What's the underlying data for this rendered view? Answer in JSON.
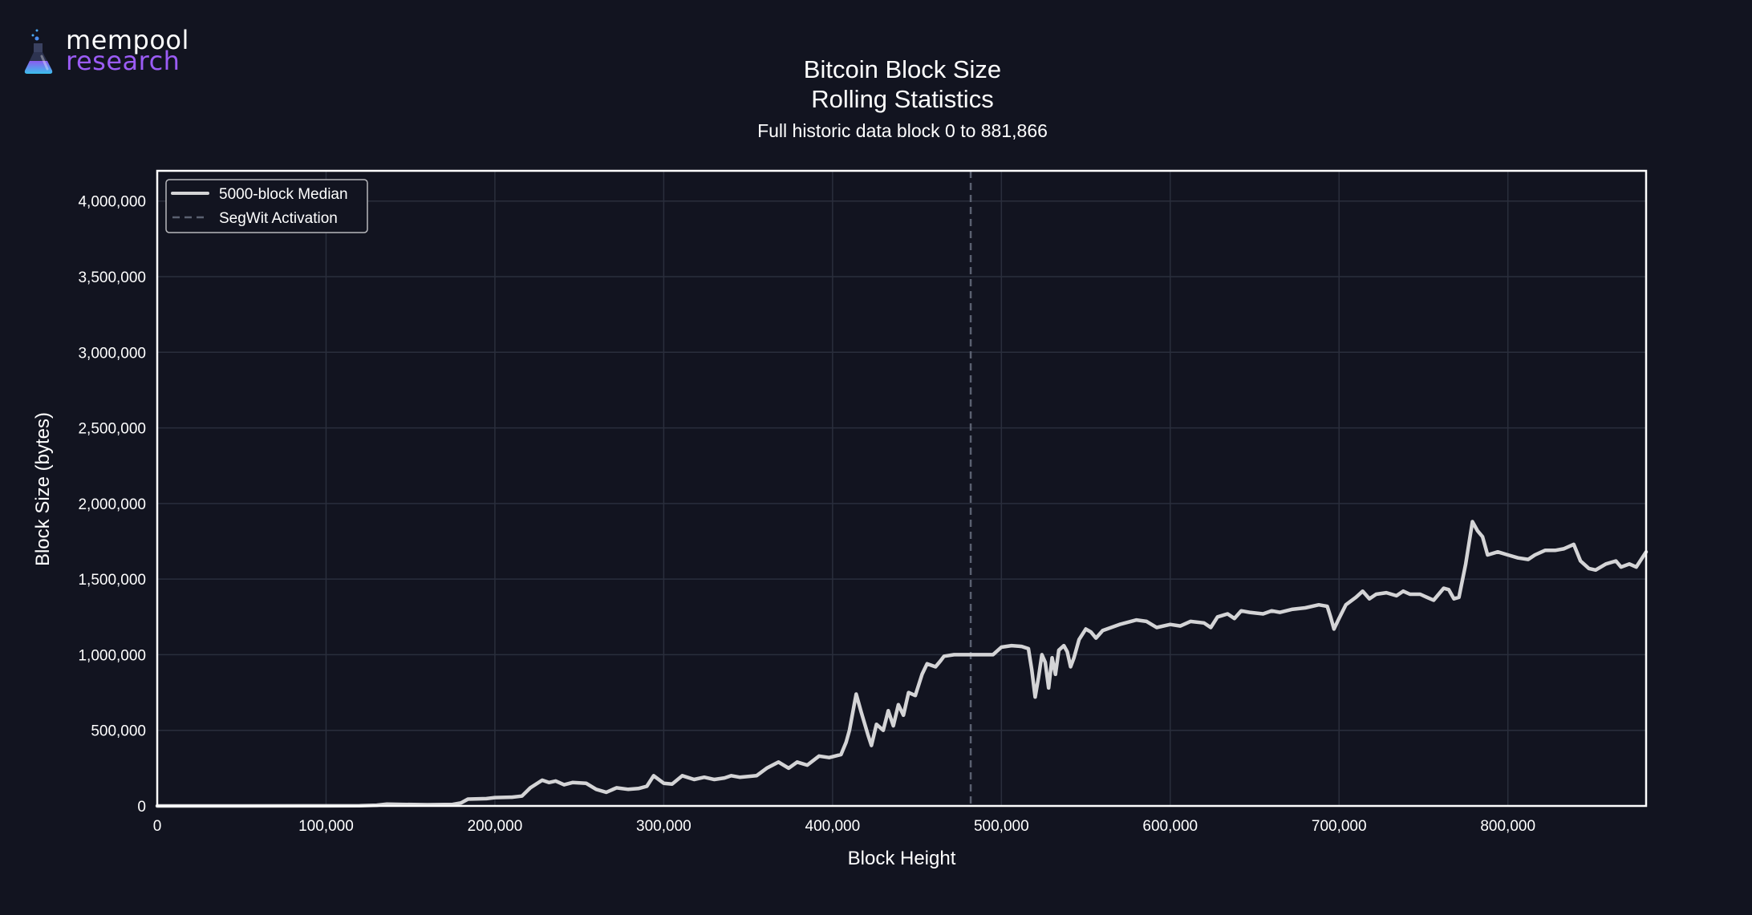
{
  "logo": {
    "line1": "mempool",
    "line2": "research",
    "icon": "flask-icon"
  },
  "chart_data": {
    "type": "line",
    "title": "Bitcoin Block Size",
    "title_line2": "Rolling Statistics",
    "subtitle": "Full historic data block 0 to 881,866",
    "xlabel": "Block Height",
    "ylabel": "Block Size (bytes)",
    "xlim": [
      0,
      881866
    ],
    "ylim": [
      0,
      4200000
    ],
    "grid": true,
    "legend_position": "upper left",
    "x_ticks": [
      0,
      100000,
      200000,
      300000,
      400000,
      500000,
      600000,
      700000,
      800000
    ],
    "x_tick_labels": [
      "0",
      "100,000",
      "200,000",
      "300,000",
      "400,000",
      "500,000",
      "600,000",
      "700,000",
      "800,000"
    ],
    "y_ticks": [
      0,
      500000,
      1000000,
      1500000,
      2000000,
      2500000,
      3000000,
      3500000,
      4000000
    ],
    "y_tick_labels": [
      "0",
      "500,000",
      "1,000,000",
      "1,500,000",
      "2,000,000",
      "2,500,000",
      "3,000,000",
      "3,500,000",
      "4,000,000"
    ],
    "legend": [
      {
        "label": "5000-block Median",
        "style": "solid",
        "color": "#d4d4d6"
      },
      {
        "label": "SegWit Activation",
        "style": "dashed",
        "color": "#5a6070"
      }
    ],
    "annotations": [
      {
        "type": "vline",
        "x": 481824,
        "label": "SegWit Activation"
      }
    ],
    "series": [
      {
        "name": "5000-block Median",
        "color": "#d4d4d6",
        "points": [
          [
            0,
            215
          ],
          [
            50000,
            215
          ],
          [
            100000,
            300
          ],
          [
            120000,
            1500
          ],
          [
            130000,
            5000
          ],
          [
            136000,
            12000
          ],
          [
            145000,
            10000
          ],
          [
            160000,
            8000
          ],
          [
            175000,
            10000
          ],
          [
            180000,
            20000
          ],
          [
            184000,
            45000
          ],
          [
            195000,
            48000
          ],
          [
            200000,
            55000
          ],
          [
            210000,
            58000
          ],
          [
            216000,
            65000
          ],
          [
            221000,
            120000
          ],
          [
            228000,
            170000
          ],
          [
            232000,
            155000
          ],
          [
            236000,
            165000
          ],
          [
            241000,
            140000
          ],
          [
            246000,
            155000
          ],
          [
            254000,
            150000
          ],
          [
            260000,
            110000
          ],
          [
            266000,
            90000
          ],
          [
            272000,
            120000
          ],
          [
            279000,
            110000
          ],
          [
            285000,
            115000
          ],
          [
            290000,
            130000
          ],
          [
            294000,
            200000
          ],
          [
            300000,
            150000
          ],
          [
            305000,
            145000
          ],
          [
            311000,
            200000
          ],
          [
            318000,
            175000
          ],
          [
            324000,
            190000
          ],
          [
            330000,
            175000
          ],
          [
            336000,
            185000
          ],
          [
            340000,
            200000
          ],
          [
            345000,
            190000
          ],
          [
            355000,
            200000
          ],
          [
            361000,
            250000
          ],
          [
            368000,
            290000
          ],
          [
            374000,
            250000
          ],
          [
            379000,
            290000
          ],
          [
            385000,
            270000
          ],
          [
            392000,
            330000
          ],
          [
            398000,
            320000
          ],
          [
            405000,
            340000
          ],
          [
            408000,
            420000
          ],
          [
            410000,
            500000
          ],
          [
            414000,
            740000
          ],
          [
            417000,
            620000
          ],
          [
            421000,
            470000
          ],
          [
            423000,
            400000
          ],
          [
            426000,
            540000
          ],
          [
            430000,
            500000
          ],
          [
            433000,
            630000
          ],
          [
            436000,
            530000
          ],
          [
            439000,
            670000
          ],
          [
            442000,
            600000
          ],
          [
            445000,
            750000
          ],
          [
            449000,
            730000
          ],
          [
            453000,
            870000
          ],
          [
            456000,
            940000
          ],
          [
            461000,
            920000
          ],
          [
            464000,
            960000
          ],
          [
            466000,
            990000
          ],
          [
            472000,
            1000000
          ],
          [
            481824,
            1000000
          ],
          [
            490000,
            1000000
          ],
          [
            495000,
            1000000
          ],
          [
            500000,
            1050000
          ],
          [
            506000,
            1060000
          ],
          [
            512000,
            1055000
          ],
          [
            516000,
            1040000
          ],
          [
            518000,
            900000
          ],
          [
            520000,
            720000
          ],
          [
            522000,
            850000
          ],
          [
            524000,
            1000000
          ],
          [
            526000,
            950000
          ],
          [
            528000,
            780000
          ],
          [
            530000,
            980000
          ],
          [
            532000,
            870000
          ],
          [
            534000,
            1030000
          ],
          [
            537000,
            1060000
          ],
          [
            539000,
            1020000
          ],
          [
            541000,
            920000
          ],
          [
            543000,
            980000
          ],
          [
            546000,
            1100000
          ],
          [
            550000,
            1170000
          ],
          [
            553000,
            1150000
          ],
          [
            556000,
            1110000
          ],
          [
            560000,
            1160000
          ],
          [
            570000,
            1200000
          ],
          [
            580000,
            1230000
          ],
          [
            586000,
            1220000
          ],
          [
            592000,
            1180000
          ],
          [
            600000,
            1200000
          ],
          [
            606000,
            1190000
          ],
          [
            612000,
            1220000
          ],
          [
            620000,
            1210000
          ],
          [
            624000,
            1180000
          ],
          [
            628000,
            1250000
          ],
          [
            634000,
            1270000
          ],
          [
            638000,
            1240000
          ],
          [
            642000,
            1290000
          ],
          [
            647000,
            1280000
          ],
          [
            655000,
            1270000
          ],
          [
            660000,
            1290000
          ],
          [
            665000,
            1280000
          ],
          [
            672000,
            1300000
          ],
          [
            680000,
            1310000
          ],
          [
            688000,
            1330000
          ],
          [
            693000,
            1320000
          ],
          [
            695000,
            1250000
          ],
          [
            697000,
            1170000
          ],
          [
            700000,
            1240000
          ],
          [
            704000,
            1330000
          ],
          [
            710000,
            1380000
          ],
          [
            714000,
            1420000
          ],
          [
            718000,
            1370000
          ],
          [
            722000,
            1400000
          ],
          [
            728000,
            1410000
          ],
          [
            734000,
            1390000
          ],
          [
            738000,
            1420000
          ],
          [
            742000,
            1400000
          ],
          [
            748000,
            1400000
          ],
          [
            752000,
            1380000
          ],
          [
            756000,
            1360000
          ],
          [
            762000,
            1440000
          ],
          [
            765000,
            1430000
          ],
          [
            768000,
            1370000
          ],
          [
            771000,
            1380000
          ],
          [
            775000,
            1600000
          ],
          [
            779000,
            1880000
          ],
          [
            782000,
            1820000
          ],
          [
            785000,
            1780000
          ],
          [
            788000,
            1660000
          ],
          [
            794000,
            1680000
          ],
          [
            800000,
            1660000
          ],
          [
            806000,
            1640000
          ],
          [
            812000,
            1630000
          ],
          [
            816000,
            1660000
          ],
          [
            822000,
            1690000
          ],
          [
            828000,
            1690000
          ],
          [
            833000,
            1700000
          ],
          [
            839000,
            1730000
          ],
          [
            843000,
            1620000
          ],
          [
            848000,
            1570000
          ],
          [
            852000,
            1560000
          ],
          [
            858000,
            1600000
          ],
          [
            864000,
            1620000
          ],
          [
            867000,
            1580000
          ],
          [
            872000,
            1600000
          ],
          [
            876000,
            1580000
          ],
          [
            881866,
            1680000
          ]
        ]
      }
    ]
  }
}
